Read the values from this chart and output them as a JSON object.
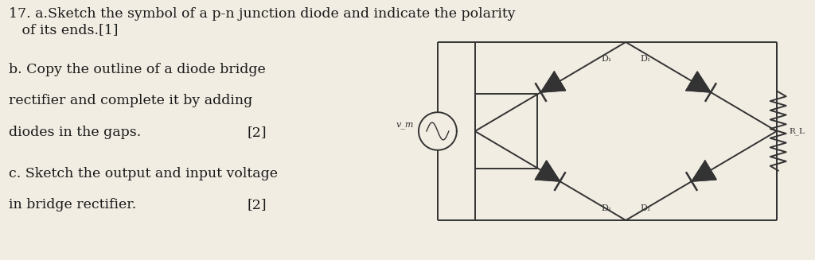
{
  "title_text": "17. a.Sketch the symbol of a p-n junction diode and indicate the polarity",
  "line2": "   of its ends.[1]",
  "line3": "b. Copy the outline of a diode bridge",
  "line4": "rectifier and complete it by adding",
  "line5": "diodes in the gaps.",
  "mark2": "[2]",
  "line6": "c. Sketch the output and input voltage",
  "line7": "in bridge rectifier.",
  "mark3": "[2]",
  "bg_color": "#f2ede3",
  "text_color": "#1a1a1a",
  "font_size_main": 12.5,
  "font_family": "serif",
  "line_color": "#333333",
  "line_width": 1.4
}
